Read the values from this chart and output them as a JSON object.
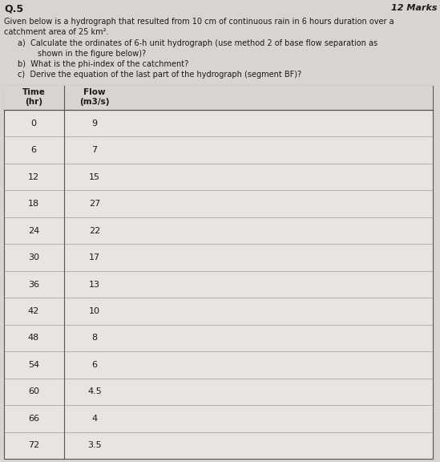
{
  "title_right": "12 Marks",
  "question_number": "Q.5",
  "intro_line1": "Given below is a hydrograph that resulted from 10 cm of continuous rain in 6 hours duration over a",
  "intro_line2": "catchment area of 25 km².",
  "sub_a": "a)  Calculate the ordinates of 6-h unit hydrograph (use method 2 of base flow separation as",
  "sub_a2": "        shown in the figure below)?",
  "sub_b": "b)  What is the phi-index of the catchment?",
  "sub_c": "c)  Derive the equation of the last part of the hydrograph (segment BF)?",
  "col1_header": "Time\n(hr)",
  "col2_header": "Flow\n(m3/s)",
  "time": [
    0,
    6,
    12,
    18,
    24,
    30,
    36,
    42,
    48,
    54,
    60,
    66,
    72
  ],
  "flow": [
    9,
    7,
    15,
    27,
    22,
    17,
    13,
    10,
    8,
    6,
    4.5,
    4,
    3.5
  ],
  "bg_color": "#c9c5c5",
  "page_color": "#d8d4d0",
  "text_color": "#1a1a1a",
  "table_line_color": "#555555",
  "font_size_main": 7.0,
  "font_size_header": 7.5,
  "font_size_q": 9.0,
  "font_size_title": 8.0,
  "font_size_data": 8.0
}
